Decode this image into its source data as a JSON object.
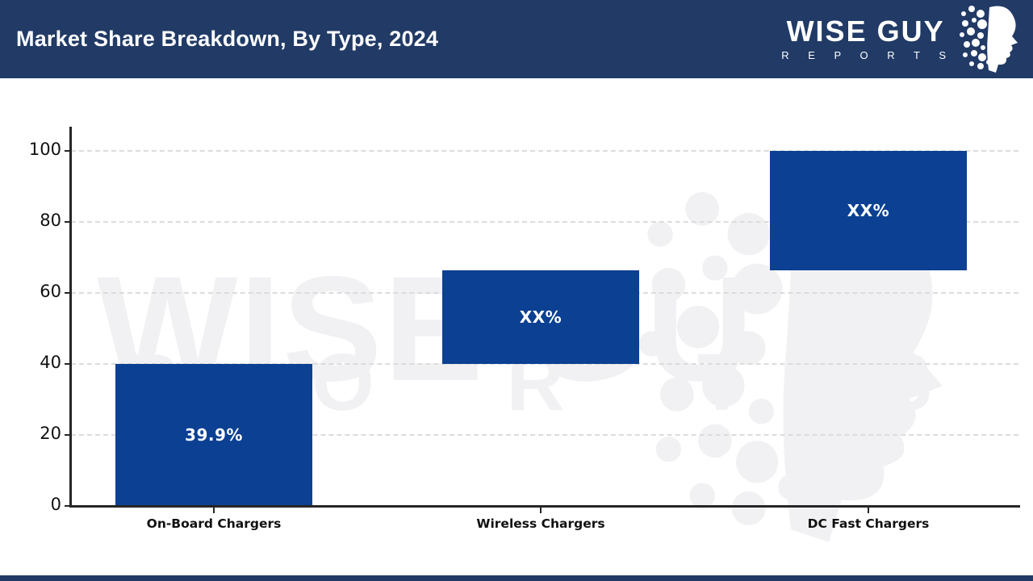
{
  "header": {
    "title": "Market Share Breakdown, By Type, 2024",
    "logo": {
      "line1": "WISE GUY",
      "line2": "R E P O R T S",
      "icon": "dotted-head-profile"
    }
  },
  "watermark": {
    "line1": "WISE GU",
    "line2": "R O R T S",
    "icon": "dotted-head-profile-watermark"
  },
  "colors": {
    "header_bg": "#213a66",
    "footer_bg": "#213a66",
    "bar_fill": "#0b4092",
    "bar_label_text": "#ffffff",
    "axis": "#262626",
    "gridline": "#dcdcdc",
    "tick_text": "#111111",
    "watermark": "#f1f1f4",
    "background": "#ffffff"
  },
  "chart_data": {
    "type": "bar",
    "variant": "floating-segment-bars (waterfall style)",
    "title": "Market Share Breakdown, By Type, 2024",
    "xlabel": "",
    "ylabel": "",
    "categories": [
      "On-Board Chargers",
      "Wireless Chargers",
      "DC Fast Chargers"
    ],
    "bars": [
      {
        "category": "On-Board Chargers",
        "start": 0,
        "end": 39.9,
        "value_label": "39.9%"
      },
      {
        "category": "Wireless Chargers",
        "start": 40.0,
        "end": 66.4,
        "value_label": "XX%"
      },
      {
        "category": "DC Fast Chargers",
        "start": 66.4,
        "end": 100,
        "value_label": "XX%"
      }
    ],
    "yticks": [
      0,
      20,
      40,
      60,
      80,
      100
    ],
    "ylim": [
      0,
      106
    ],
    "grid": "horizontal dashed",
    "legend": "none"
  }
}
